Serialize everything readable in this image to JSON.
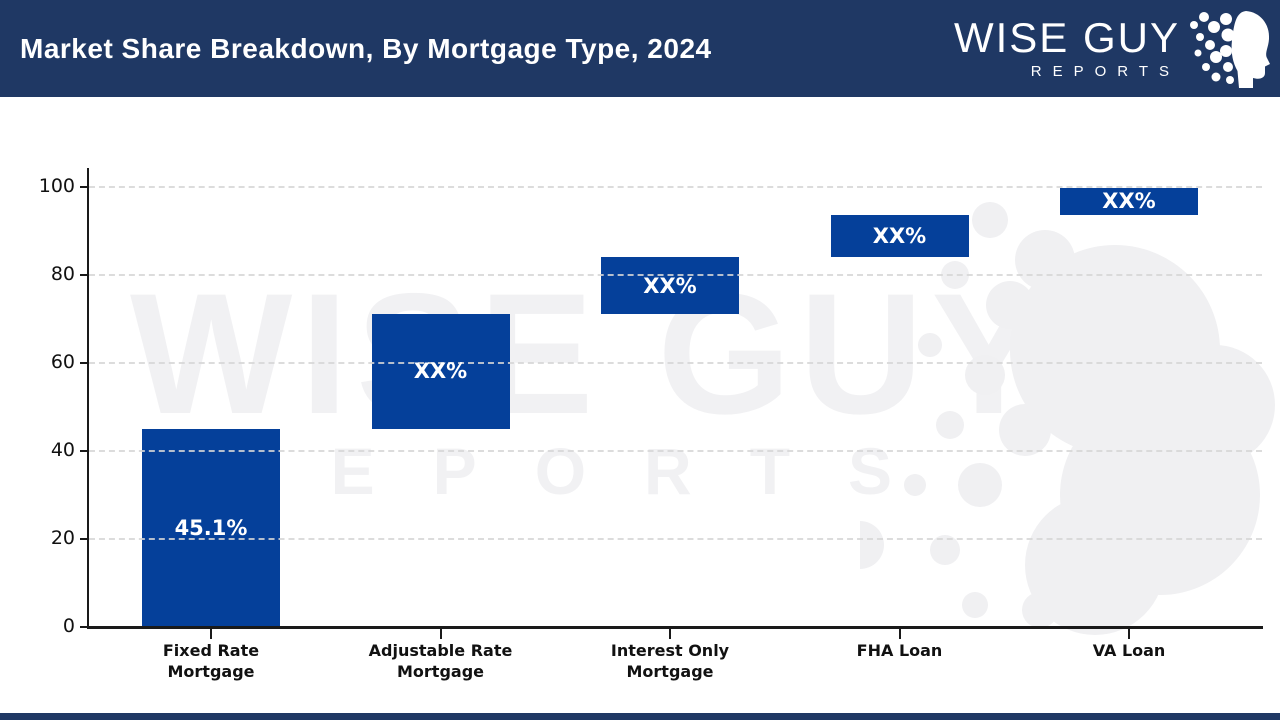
{
  "header": {
    "title": "Market Share Breakdown, By Mortgage Type, 2024",
    "logo": {
      "primary": "WISE GUY",
      "secondary": "REPORTS"
    }
  },
  "watermark": {
    "primary": "WISE GUY",
    "secondary": "REPORTS"
  },
  "colors": {
    "header_bg": "#1f3864",
    "footer_bg": "#1f3864",
    "bar": "#05409a",
    "bar_label": "#ffffff",
    "grid": "#d6d6d6",
    "axis": "#1a1a1a",
    "watermark": "#f1f1f3"
  },
  "chart_data": {
    "type": "bar",
    "subtype": "waterfall",
    "title": "Market Share Breakdown, By Mortgage Type, 2024",
    "categories": [
      "Fixed Rate Mortgage",
      "Adjustable Rate Mortgage",
      "Interest Only Mortgage",
      "FHA Loan",
      "VA Loan"
    ],
    "category_lines": [
      [
        "Fixed Rate",
        "Mortgage"
      ],
      [
        "Adjustable Rate",
        "Mortgage"
      ],
      [
        "Interest Only",
        "Mortgage"
      ],
      [
        "FHA Loan"
      ],
      [
        "VA Loan"
      ]
    ],
    "segments": [
      {
        "category": "Fixed Rate Mortgage",
        "base": 0,
        "top": 45.1,
        "label": "45.1%"
      },
      {
        "category": "Adjustable Rate Mortgage",
        "base": 45.1,
        "top": 71.1,
        "label": "XX%"
      },
      {
        "category": "Interest Only Mortgage",
        "base": 71.1,
        "top": 84.1,
        "label": "XX%"
      },
      {
        "category": "FHA Loan",
        "base": 84.1,
        "top": 93.7,
        "label": "XX%"
      },
      {
        "category": "VA Loan",
        "base": 93.7,
        "top": 99.8,
        "label": "XX%"
      }
    ],
    "xlabel": "",
    "ylabel": "",
    "yticks": [
      0,
      20,
      40,
      60,
      80,
      100
    ],
    "ylim": [
      0,
      104
    ],
    "grid": "horizontal-dashed",
    "legend": "none",
    "bar_color": "#05409a",
    "bar_label_color": "#ffffff"
  }
}
